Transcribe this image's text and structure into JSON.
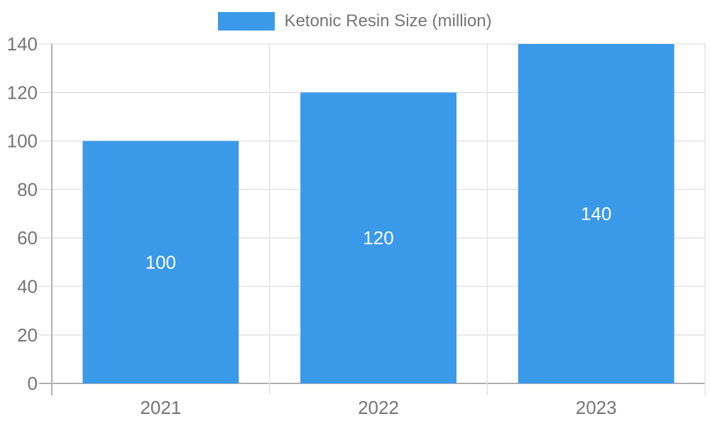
{
  "chart_data": {
    "type": "bar",
    "title": "",
    "xlabel": "",
    "ylabel": "",
    "categories": [
      "2021",
      "2022",
      "2023"
    ],
    "series": [
      {
        "name": "Ketonic Resin Size (million)",
        "values": [
          100,
          120,
          140
        ]
      }
    ],
    "data_labels": [
      "100",
      "120",
      "140"
    ],
    "ylim": [
      0,
      140
    ],
    "yticks": [
      0,
      20,
      40,
      60,
      80,
      100,
      120,
      140
    ],
    "grid": "on",
    "legend_position": "top-center",
    "colors": {
      "bar": "#3b99ea",
      "axis_line": "#b0b0b0",
      "gridline": "#e3e3e3",
      "tick_label": "#757575",
      "legend_label": "#757575",
      "bar_label": "#ffffff",
      "background": "#ffffff"
    }
  }
}
